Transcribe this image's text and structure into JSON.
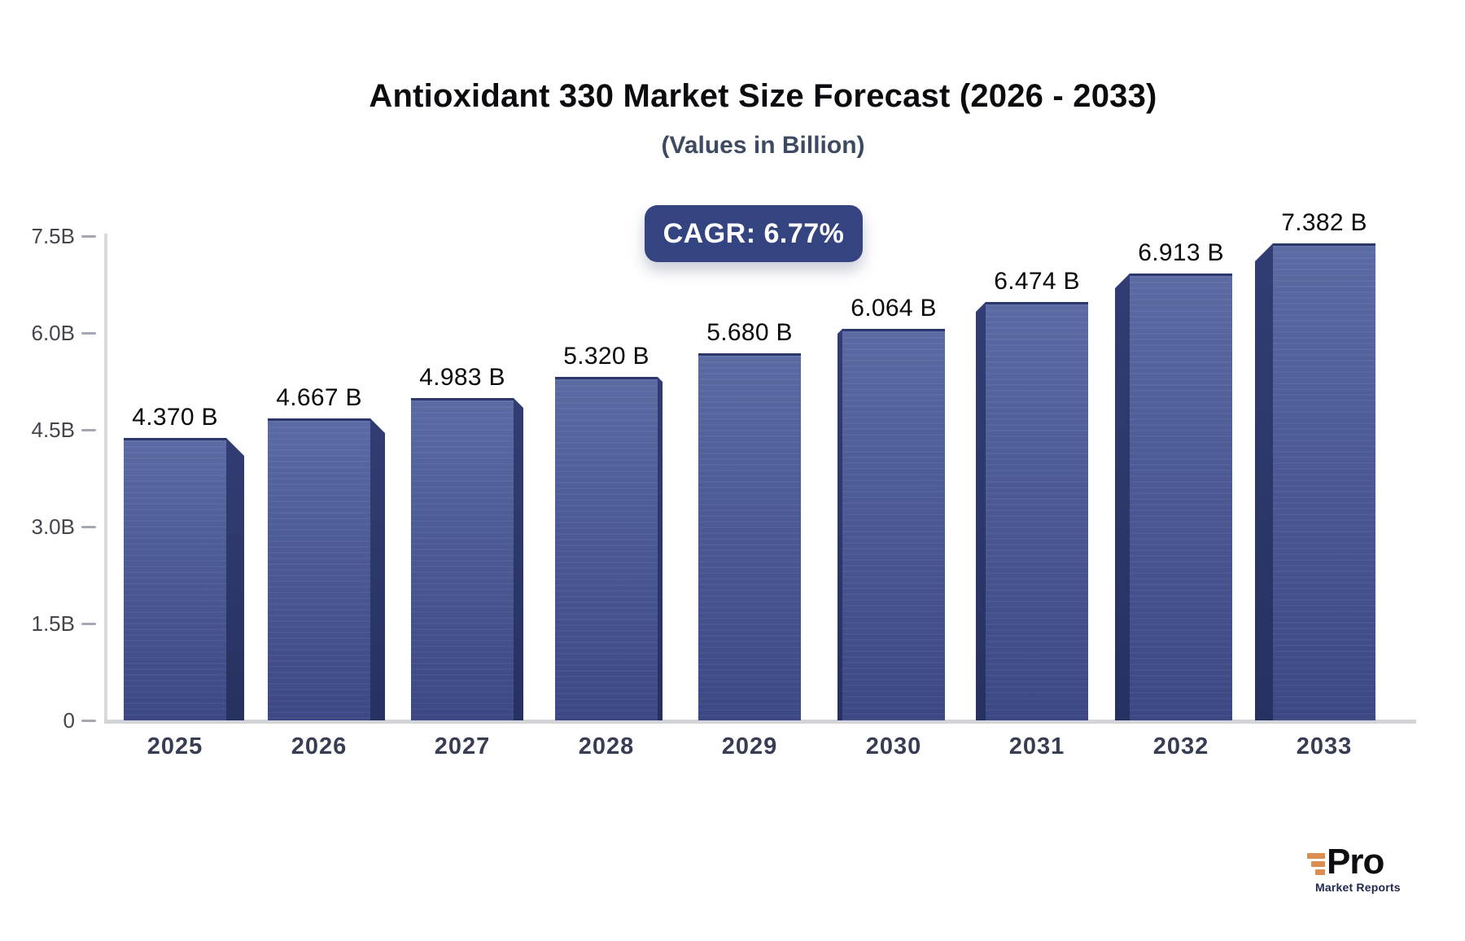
{
  "header": {
    "title": "Antioxidant 330 Market Size Forecast (2026 - 2033)",
    "subtitle": "(Values in Billion)",
    "cagr_label": "CAGR: 6.77%"
  },
  "chart_data": {
    "type": "bar",
    "title": "Antioxidant 330 Market Size Forecast (2026 - 2033)",
    "subtitle": "(Values in Billion)",
    "cagr_label": "CAGR: 6.77%",
    "categories": [
      "2025",
      "2026",
      "2027",
      "2028",
      "2029",
      "2030",
      "2031",
      "2032",
      "2033"
    ],
    "values": [
      4.37,
      4.667,
      4.983,
      5.32,
      5.68,
      6.064,
      6.474,
      6.913,
      7.382
    ],
    "value_labels": [
      "4.370 B",
      "4.667 B",
      "4.983 B",
      "5.320 B",
      "5.680 B",
      "6.064 B",
      "6.474 B",
      "6.913 B",
      "7.382 B"
    ],
    "xlabel": "",
    "ylabel": "",
    "unit": "Billion",
    "ylim": [
      0,
      7.5
    ],
    "y_ticks": [
      {
        "value": 7.5,
        "label": "7.5B"
      },
      {
        "value": 6.0,
        "label": "6.0B"
      },
      {
        "value": 4.5,
        "label": "4.5B"
      },
      {
        "value": 3.0,
        "label": "3.0B"
      },
      {
        "value": 1.5,
        "label": "1.5B"
      },
      {
        "value": 0,
        "label": "0"
      }
    ],
    "grid": false,
    "legend": "none",
    "bar_style": "3d-extruded",
    "colors": {
      "bar_face_top": "#5d6ca6",
      "bar_face_bottom": "#3d4985",
      "bar_side": "#2c3769",
      "bar_top_edge": "#2b376d",
      "axis_line": "#d6d7db",
      "tick": "#a3a8b3",
      "y_label": "#45454d",
      "category_label": "#373d52",
      "value_label": "#0a0a0c",
      "badge_bg": "#344480",
      "badge_text": "#ffffff",
      "title_text": "#0b0b10",
      "subtitle_text": "#3e4a61"
    }
  },
  "logo": {
    "name": "Pro",
    "subtext": "Market Reports",
    "accent_color": "#db8e52"
  }
}
